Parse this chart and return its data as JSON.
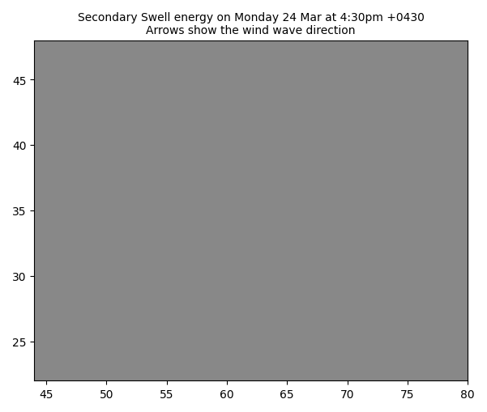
{
  "title": "Secondary Swell energy on Monday 24 Mar at 4:30pm +0430",
  "subtitle": "Arrows show the wind wave direction",
  "title_fontsize": 13,
  "subtitle_fontsize": 10,
  "title_color": "#222222",
  "background_color": "#ffffff",
  "map_extent": [
    44,
    80,
    22,
    48
  ],
  "ocean_color": "#000000",
  "land_color_base": "#aaaaaa",
  "border_color": "#000000",
  "border_linewidth": 0.7,
  "coastline_linewidth": 0.7,
  "fig_width": 6.01,
  "fig_height": 5.1,
  "dpi": 100
}
